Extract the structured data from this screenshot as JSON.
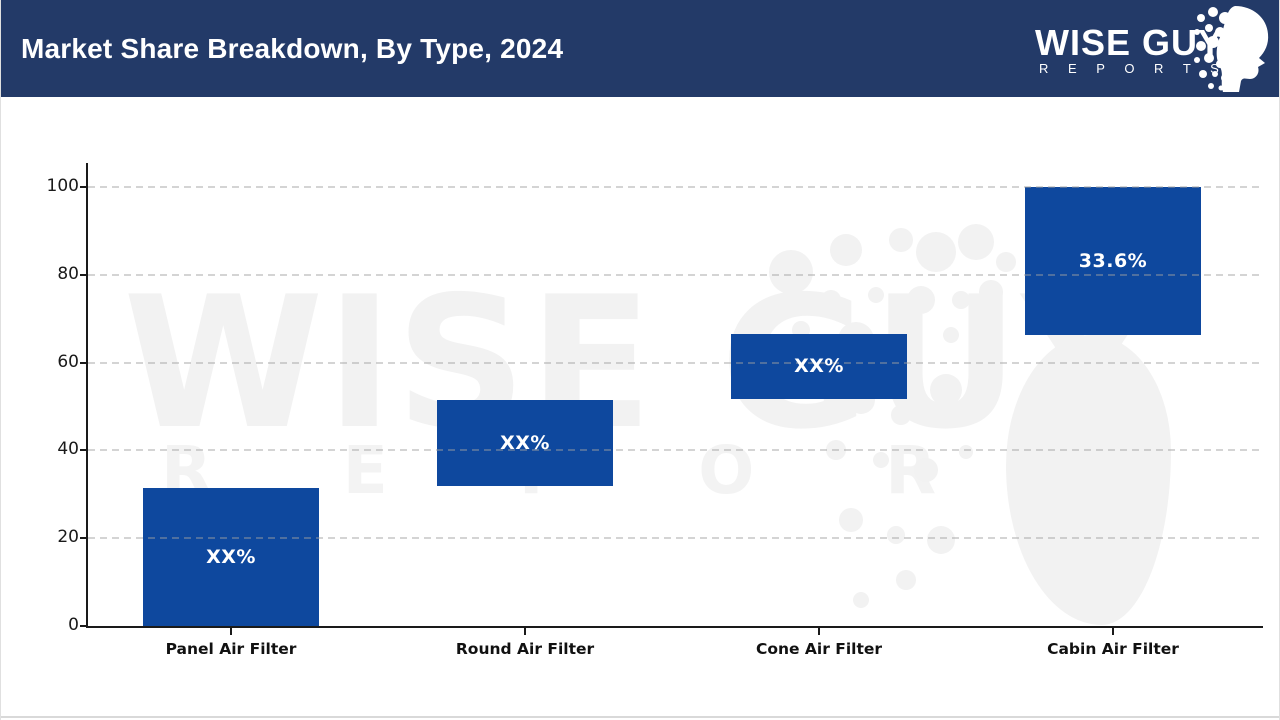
{
  "header": {
    "title": "Market Share Breakdown, By Type, 2024",
    "bg_color": "#233a68",
    "logo": {
      "line1": "WISE GUY",
      "line2": "R E P O R T S"
    }
  },
  "watermark": {
    "line1": "WISE GUY",
    "line2": "R E P O R T S"
  },
  "chart_data": {
    "type": "bar",
    "subtype": "waterfall",
    "title": "Market Share Breakdown, By Type, 2024",
    "xlabel": "",
    "ylabel": "",
    "categories": [
      "Panel Air Filter",
      "Round Air Filter",
      "Cone Air Filter",
      "Cabin Air Filter"
    ],
    "segments": [
      {
        "category": "Panel Air Filter",
        "start": 0,
        "end": 31.5,
        "label": "XX%"
      },
      {
        "category": "Round Air Filter",
        "start": 31.8,
        "end": 51.5,
        "label": "XX%"
      },
      {
        "category": "Cone Air Filter",
        "start": 51.7,
        "end": 66.6,
        "label": "XX%"
      },
      {
        "category": "Cabin Air Filter",
        "start": 66.4,
        "end": 100,
        "label": "33.6%"
      }
    ],
    "yticks": [
      0,
      20,
      40,
      60,
      80,
      100
    ],
    "ylim": [
      0,
      105
    ],
    "grid": true,
    "grid_style": "dashed",
    "legend": false,
    "bar_color": "#0e489e",
    "axis_color": "#1a1a1a"
  }
}
